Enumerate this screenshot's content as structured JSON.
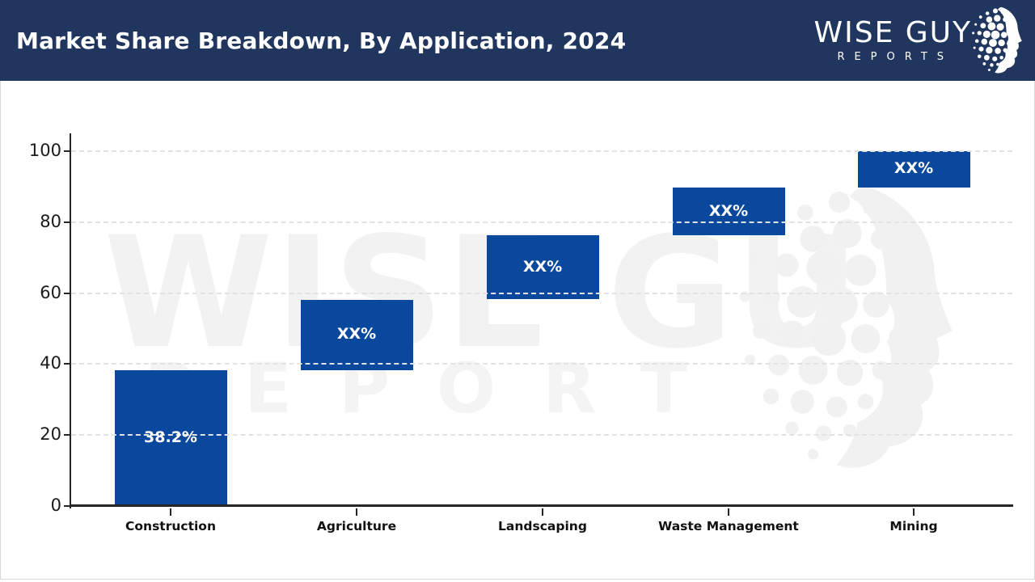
{
  "header": {
    "title": "Market Share Breakdown, By Application, 2024",
    "bg_color": "#21365f",
    "logo": {
      "line1": "WISE GUY",
      "line2": "REPORTS"
    }
  },
  "watermark": {
    "line1": "WISE GU",
    "line2": "REPORT"
  },
  "colors": {
    "bar": "#0a489e",
    "header_bg": "#21365f",
    "grid": "#e2e2e2",
    "axis": "#262626",
    "bar_label": "#ffffff"
  },
  "chart_data": {
    "type": "bar",
    "subtype": "waterfall",
    "title": "Market Share Breakdown, By Application, 2024",
    "categories": [
      "Construction",
      "Agriculture",
      "Landscaping",
      "Waste Management",
      "Mining"
    ],
    "series": [
      {
        "name": "Market Share",
        "segments": [
          {
            "category": "Construction",
            "start": 0,
            "end": 38.2,
            "value": 38.2,
            "display": "38.2%"
          },
          {
            "category": "Agriculture",
            "start": 38.2,
            "end": 58.2,
            "value": 20.0,
            "display": "XX%"
          },
          {
            "category": "Landscaping",
            "start": 58.2,
            "end": 76.2,
            "value": 18.0,
            "display": "XX%"
          },
          {
            "category": "Waste Management",
            "start": 76.2,
            "end": 89.8,
            "value": 13.6,
            "display": "XX%"
          },
          {
            "category": "Mining",
            "start": 89.8,
            "end": 100,
            "value": 10.2,
            "display": "XX%"
          }
        ]
      }
    ],
    "xlabel": "",
    "ylabel": "",
    "ylim": [
      0,
      105
    ],
    "yticks": [
      0,
      20,
      40,
      60,
      80,
      100
    ],
    "grid": "horizontal-dashed",
    "legend": "none"
  }
}
